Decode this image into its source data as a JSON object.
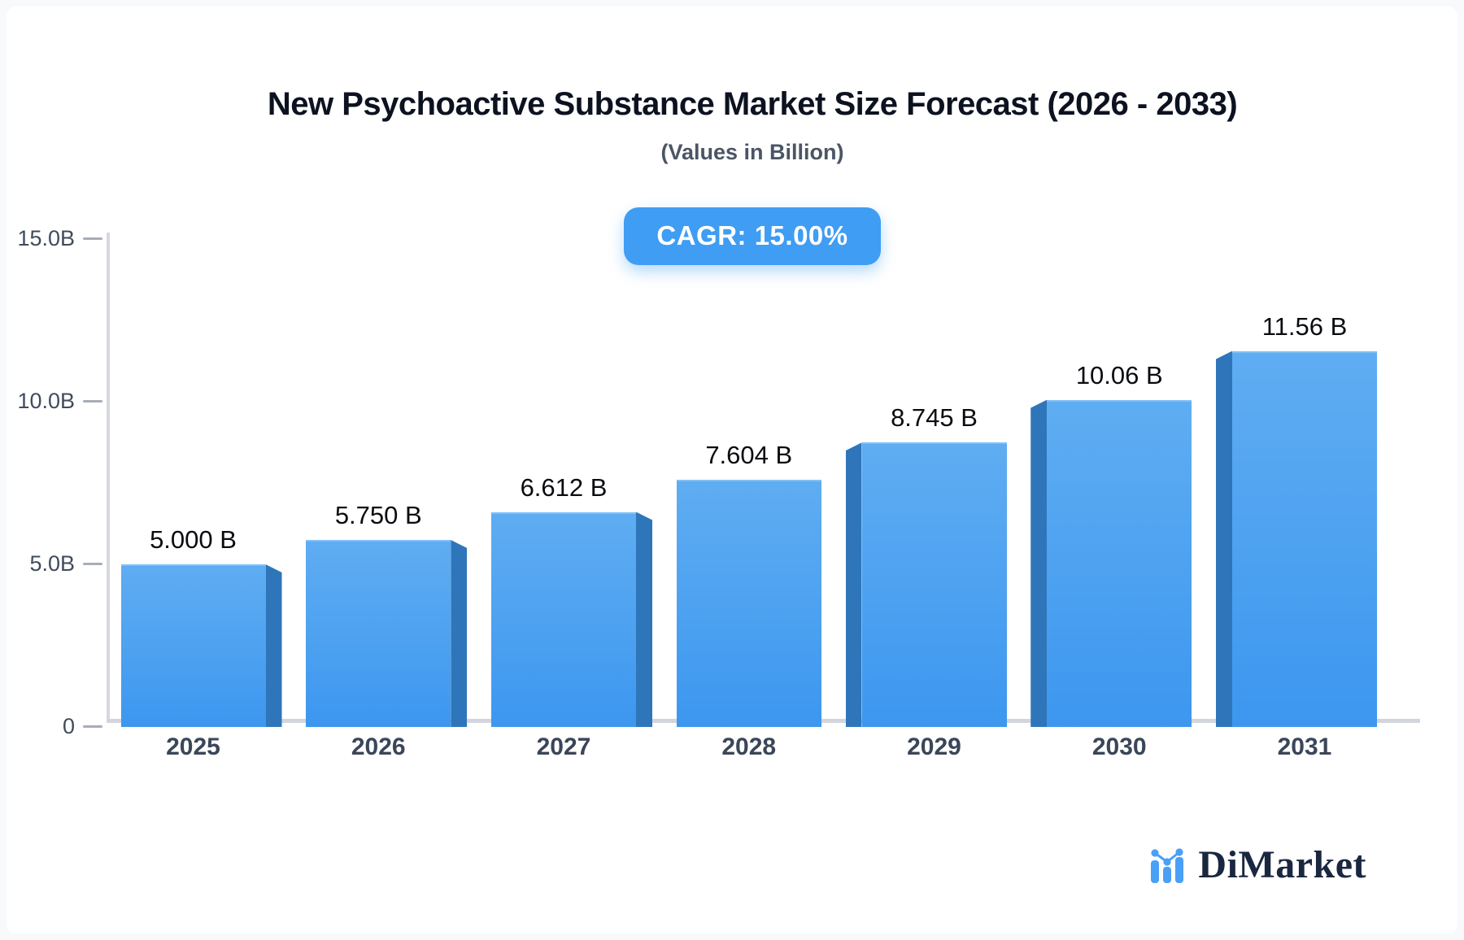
{
  "page": {
    "background": "#f7f9fb",
    "card_background": "#ffffff"
  },
  "header": {
    "title": "New Psychoactive Substance Market Size Forecast (2026 - 2033)",
    "subtitle": "(Values in Billion)",
    "cagr_badge": "CAGR: 15.00%"
  },
  "chart_data": {
    "type": "bar",
    "title": "New Psychoactive Substance Market Size Forecast (2026 - 2033)",
    "subtitle": "(Values in Billion)",
    "unit": "Billion",
    "cagr_percent": 15.0,
    "categories": [
      "2025",
      "2026",
      "2027",
      "2028",
      "2029",
      "2030",
      "2031"
    ],
    "values": [
      5.0,
      5.75,
      6.612,
      7.604,
      8.745,
      10.06,
      11.56
    ],
    "value_labels": [
      "5.000 B",
      "5.750 B",
      "6.612 B",
      "7.604 B",
      "8.745 B",
      "10.06 B",
      "11.56 B"
    ],
    "ylim": [
      0,
      15
    ],
    "y_ticks": [
      {
        "label": "15.0B",
        "value": 15
      },
      {
        "label": "10.0B",
        "value": 10
      },
      {
        "label": "5.0B",
        "value": 5
      },
      {
        "label": "0",
        "value": 0
      }
    ],
    "grid": "off",
    "legend": "none",
    "style": "3d-perspective-columns",
    "bar_color_top": "#5fadf2",
    "bar_color_bottom": "#3d97ef",
    "bar_side_color": "#2e76b9",
    "accent_color": "#3f9df3"
  },
  "footer": {
    "brand": "DiMarket",
    "brand_color": "#1a2740",
    "logo_icon": "mini-bar-line-chart-icon",
    "logo_blue": "#4aa0f6"
  }
}
